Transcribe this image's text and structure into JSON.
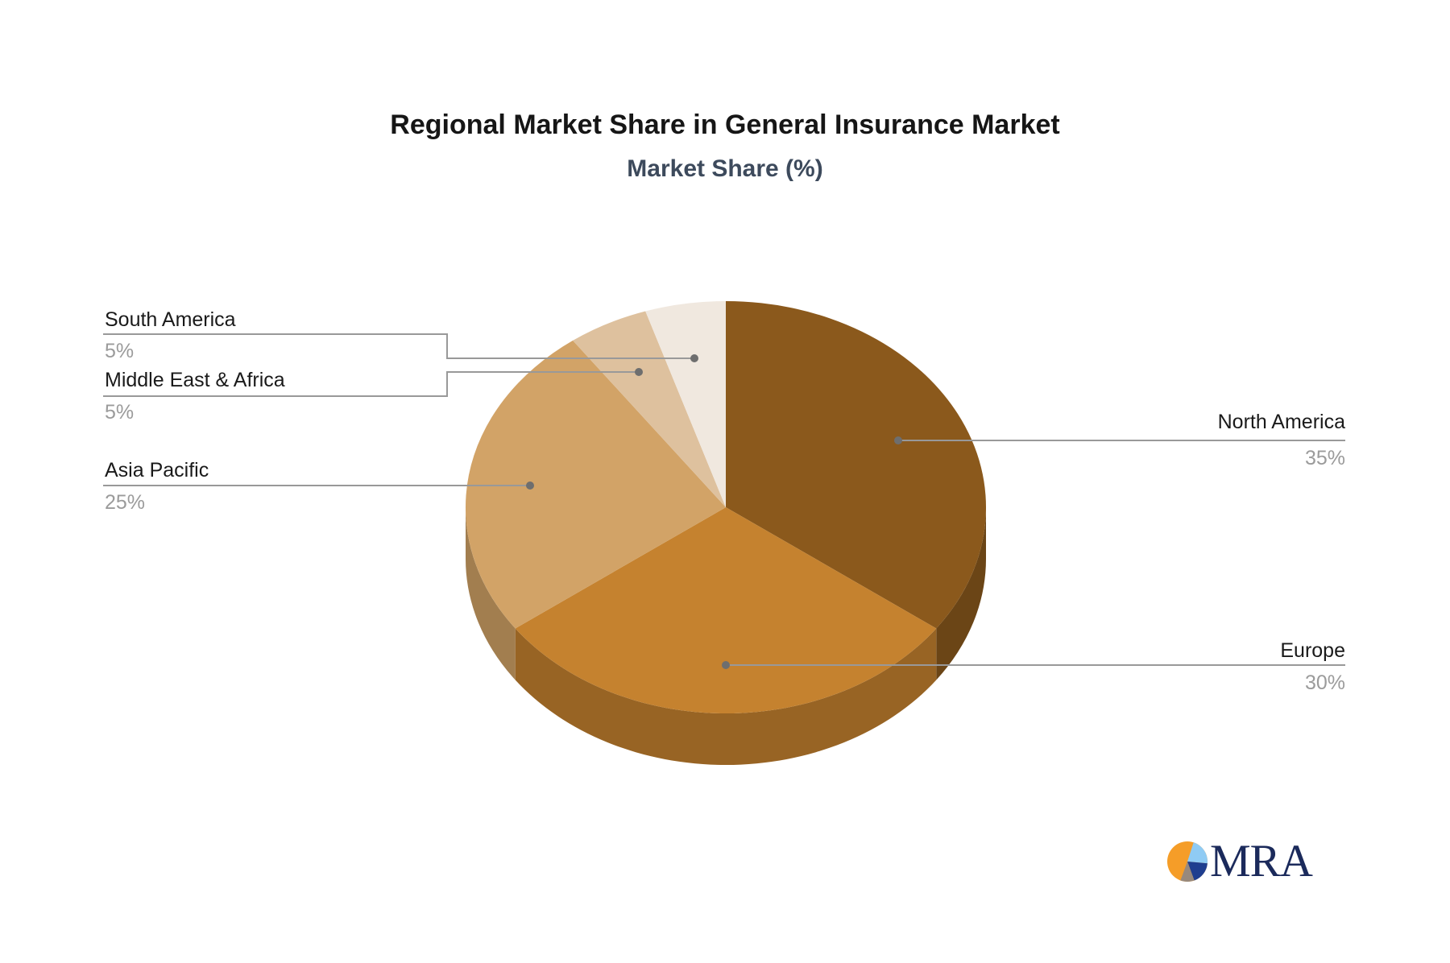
{
  "title": "Regional Market Share in General Insurance Market",
  "subtitle": "Market Share (%)",
  "chart_data": {
    "type": "pie",
    "style": "3d",
    "title": "Regional Market Share in General Insurance Market",
    "subtitle": "Market Share (%)",
    "unit": "%",
    "start_angle_deg": 0,
    "direction": "clockwise",
    "legend_position": "callout-labels",
    "slices": [
      {
        "label": "North America",
        "value": 35,
        "display": "35%",
        "color": "#8B591C"
      },
      {
        "label": "Europe",
        "value": 30,
        "display": "30%",
        "color": "#C5822F"
      },
      {
        "label": "Asia Pacific",
        "value": 25,
        "display": "25%",
        "color": "#D2A367"
      },
      {
        "label": "Middle East & Africa",
        "value": 5,
        "display": "5%",
        "color": "#DEC19E"
      },
      {
        "label": "South America",
        "value": 5,
        "display": "5%",
        "color": "#F0E8DF"
      }
    ]
  },
  "connector": {
    "line_color": "#999999",
    "dot_color": "#6e6e6e"
  },
  "logo": {
    "text": "MRA",
    "text_color": "#1b2a5b",
    "icon_colors": {
      "orange": "#F59D28",
      "light_blue": "#8FCBF4",
      "navy": "#1F3E8F",
      "taupe": "#98897C"
    }
  }
}
